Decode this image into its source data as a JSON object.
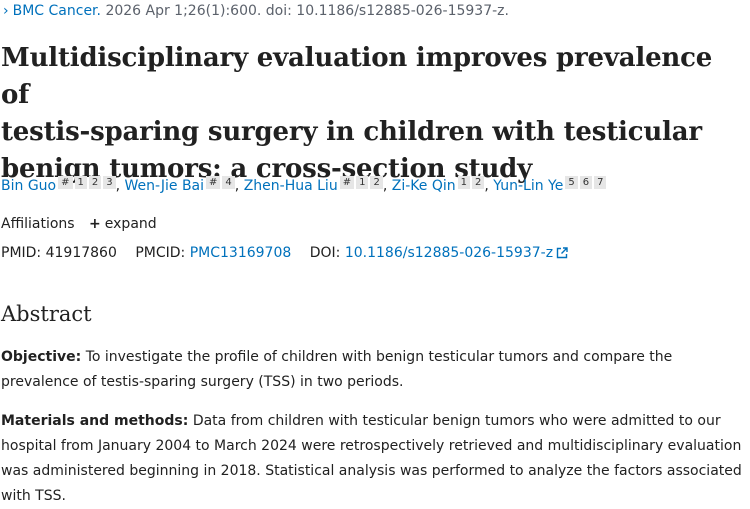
{
  "citation": {
    "journal": "BMC Cancer.",
    "details": "2026 Apr 1;26(1):600. doi: 10.1186/s12885-026-15937-z."
  },
  "title_lines": [
    "Multidisciplinary evaluation improves prevalence of",
    "testis-sparing surgery in children with testicular",
    "benign tumors: a cross-section study"
  ],
  "authors": [
    {
      "name": "Bin Guo",
      "marks": [
        "#",
        "1",
        "2",
        "3"
      ]
    },
    {
      "name": "Wen-Jie Bai",
      "marks": [
        "#",
        "4"
      ]
    },
    {
      "name": "Zhen-Hua Liu",
      "marks": [
        "#",
        "1",
        "2"
      ]
    },
    {
      "name": "Zi-Ke Qin",
      "marks": [
        "1",
        "2"
      ]
    },
    {
      "name": "Yun-Lin Ye",
      "marks": [
        "5",
        "6",
        "7"
      ]
    }
  ],
  "affiliations": {
    "label": "Affiliations",
    "expand": "expand"
  },
  "ids": {
    "pmid_label": "PMID:",
    "pmid": "41917860",
    "pmcid_label": "PMCID:",
    "pmcid": "PMC13169708",
    "doi_label": "DOI:",
    "doi": "10.1186/s12885-026-15937-z"
  },
  "abstract": {
    "heading": "Abstract",
    "objective_label": "Objective:",
    "objective_text": "To investigate the profile of children with benign testicular tumors and compare the prevalence of testis-sparing surgery (TSS) in two periods.",
    "methods_label": "Materials and methods:",
    "methods_text": "Data from children with testicular benign tumors who were admitted to our hospital from January 2004 to March 2024 were retrospectively retrieved and multidisciplinary evaluation was administered beginning in 2018. Statistical analysis was performed to analyze the factors associated with TSS."
  }
}
